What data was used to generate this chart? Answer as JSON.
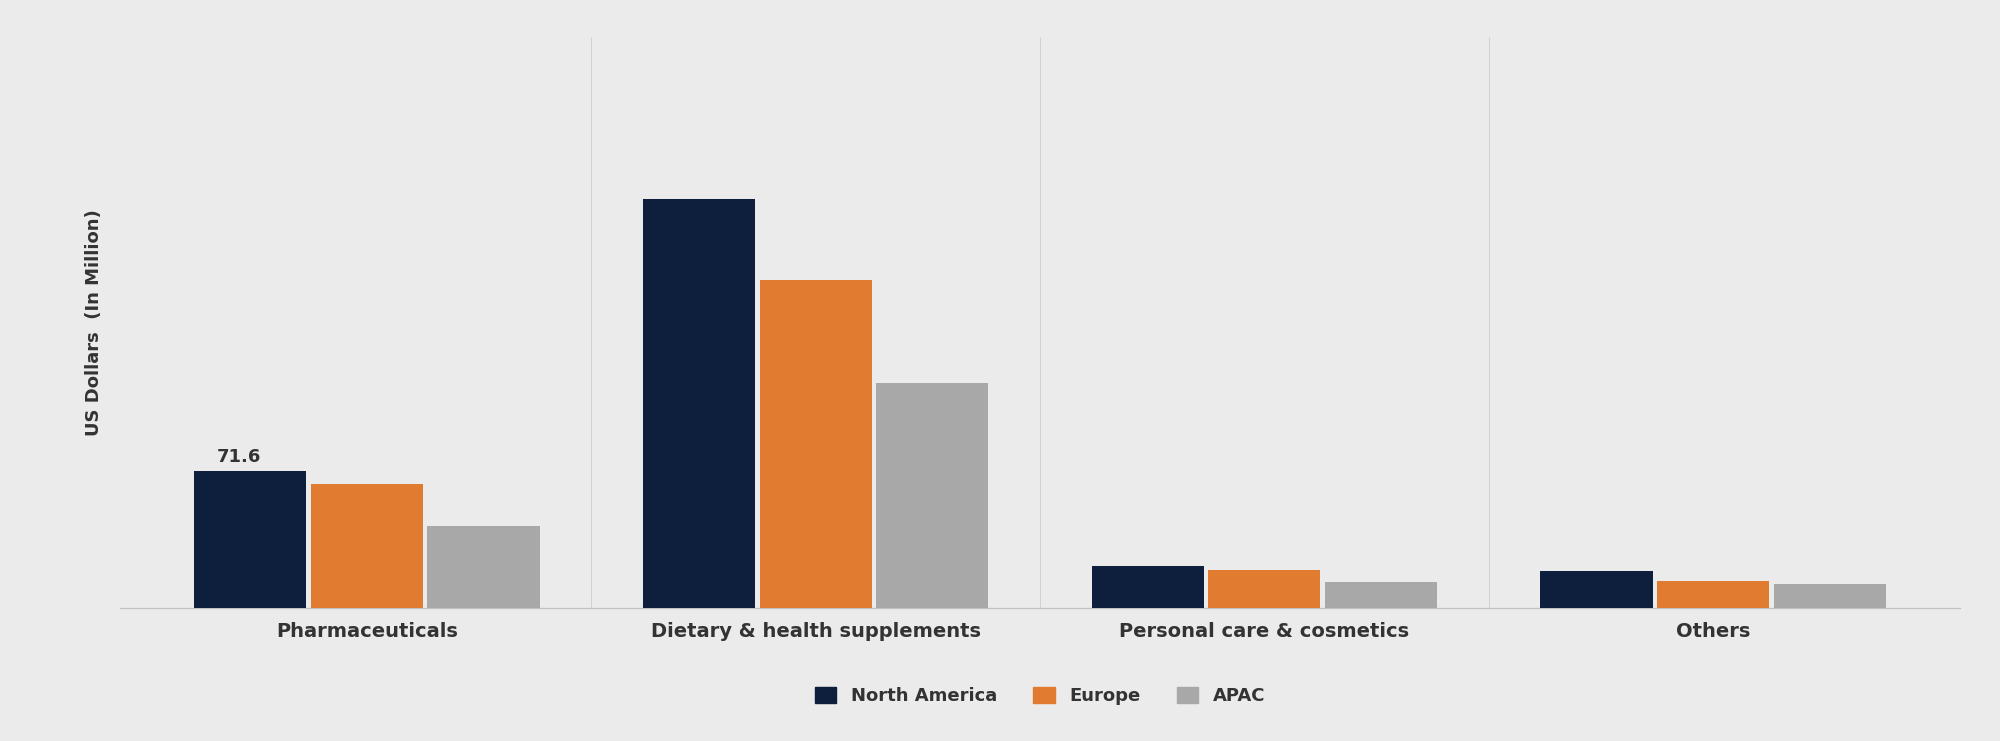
{
  "categories": [
    "Pharmaceuticals",
    "Dietary & health supplements",
    "Personal care & cosmetics",
    "Others"
  ],
  "series": {
    "North America": [
      71.6,
      215.0,
      22.0,
      19.0
    ],
    "Europe": [
      65.0,
      172.0,
      20.0,
      14.0
    ],
    "APAC": [
      43.0,
      118.0,
      13.5,
      12.5
    ]
  },
  "colors": {
    "North America": "#0d1f3c",
    "Europe": "#e07b30",
    "APAC": "#a8a8a8"
  },
  "annotation": {
    "text": "71.6",
    "series": "North America",
    "category": "Pharmaceuticals"
  },
  "ylabel": "US Dollars  (In Million)",
  "background_color": "#ebebeb",
  "bar_width": 0.25,
  "ylim": [
    0,
    300
  ],
  "legend_labels": [
    "North America",
    "Europe",
    "APAC"
  ],
  "xlabel_fontsize": 14,
  "ylabel_fontsize": 13,
  "annotation_fontsize": 13,
  "legend_fontsize": 13,
  "tick_label_color": "#333333"
}
